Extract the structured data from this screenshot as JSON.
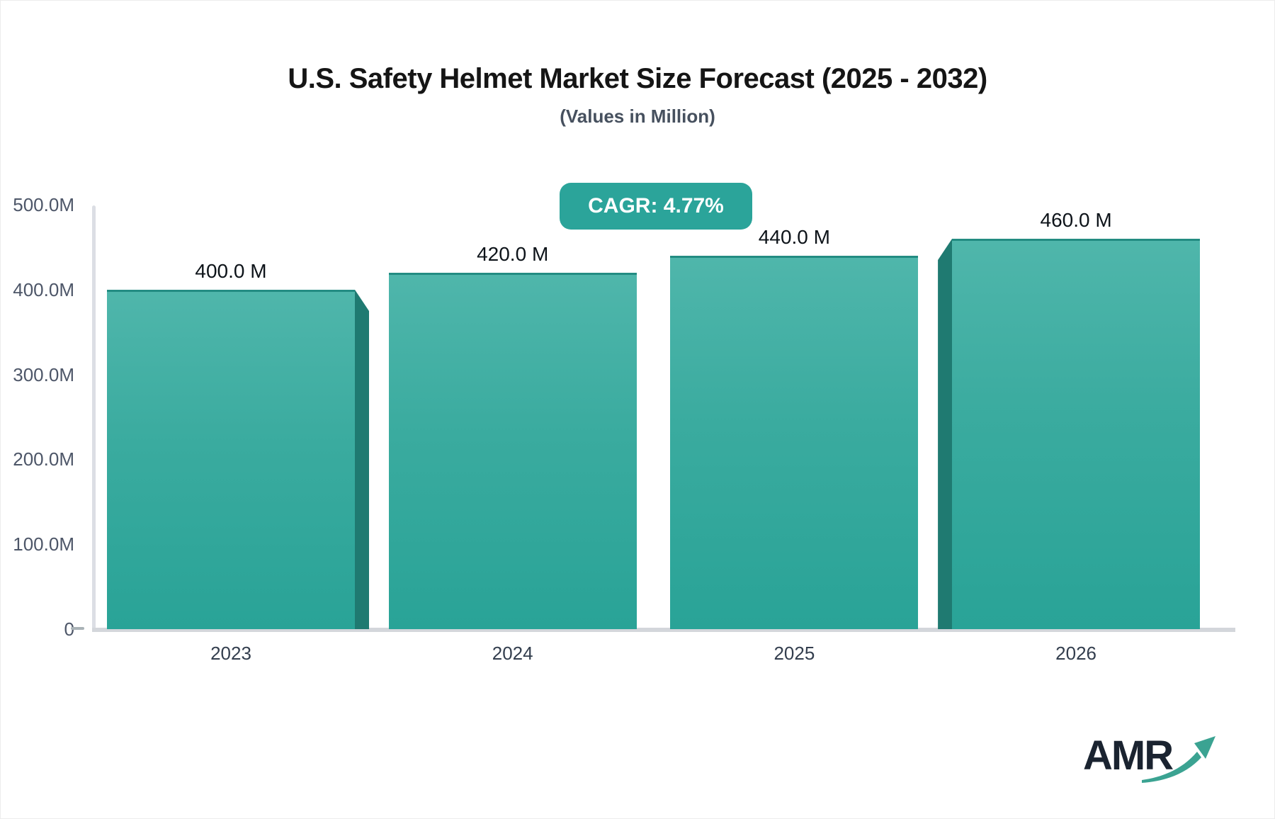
{
  "page": {
    "background": "#ffffff"
  },
  "chart_data": {
    "type": "bar",
    "title": "U.S. Safety Helmet Market Size Forecast (2025 - 2032)",
    "subtitle": "(Values in Million)",
    "cagr_label": "CAGR: 4.77%",
    "categories": [
      "2023",
      "2024",
      "2025",
      "2026"
    ],
    "values": [
      400,
      420,
      440,
      460
    ],
    "value_labels": [
      "400.0 M",
      "420.0 M",
      "440.0 M",
      "460.0 M"
    ],
    "xlabel": "",
    "ylabel": "",
    "ylim": [
      0,
      500
    ],
    "y_ticks": [
      {
        "value": 500,
        "label": "500.0M"
      },
      {
        "value": 400,
        "label": "400.0M"
      },
      {
        "value": 300,
        "label": "300.0M"
      },
      {
        "value": 200,
        "label": "200.0M"
      },
      {
        "value": 100,
        "label": "100.0M"
      },
      {
        "value": 0,
        "label": "0"
      }
    ],
    "grid": false,
    "legend": false,
    "bar_style": {
      "fill_top": "#4fb6ab",
      "fill_bottom": "#29a397",
      "top_edge": "#2f968b",
      "side_3d": "#1f7a71",
      "edges": [
        "right",
        "none",
        "none",
        "left"
      ]
    },
    "badge_bg": "#2ba49a",
    "badge_text_color": "#ffffff",
    "axis_color": "#d3d6db",
    "tick_label_color": "#4d5668"
  },
  "logo": {
    "text": "AMR",
    "arrow_icon": "growth-arrow-icon",
    "text_color": "#1a2330",
    "arrow_color": "#3ba392"
  }
}
